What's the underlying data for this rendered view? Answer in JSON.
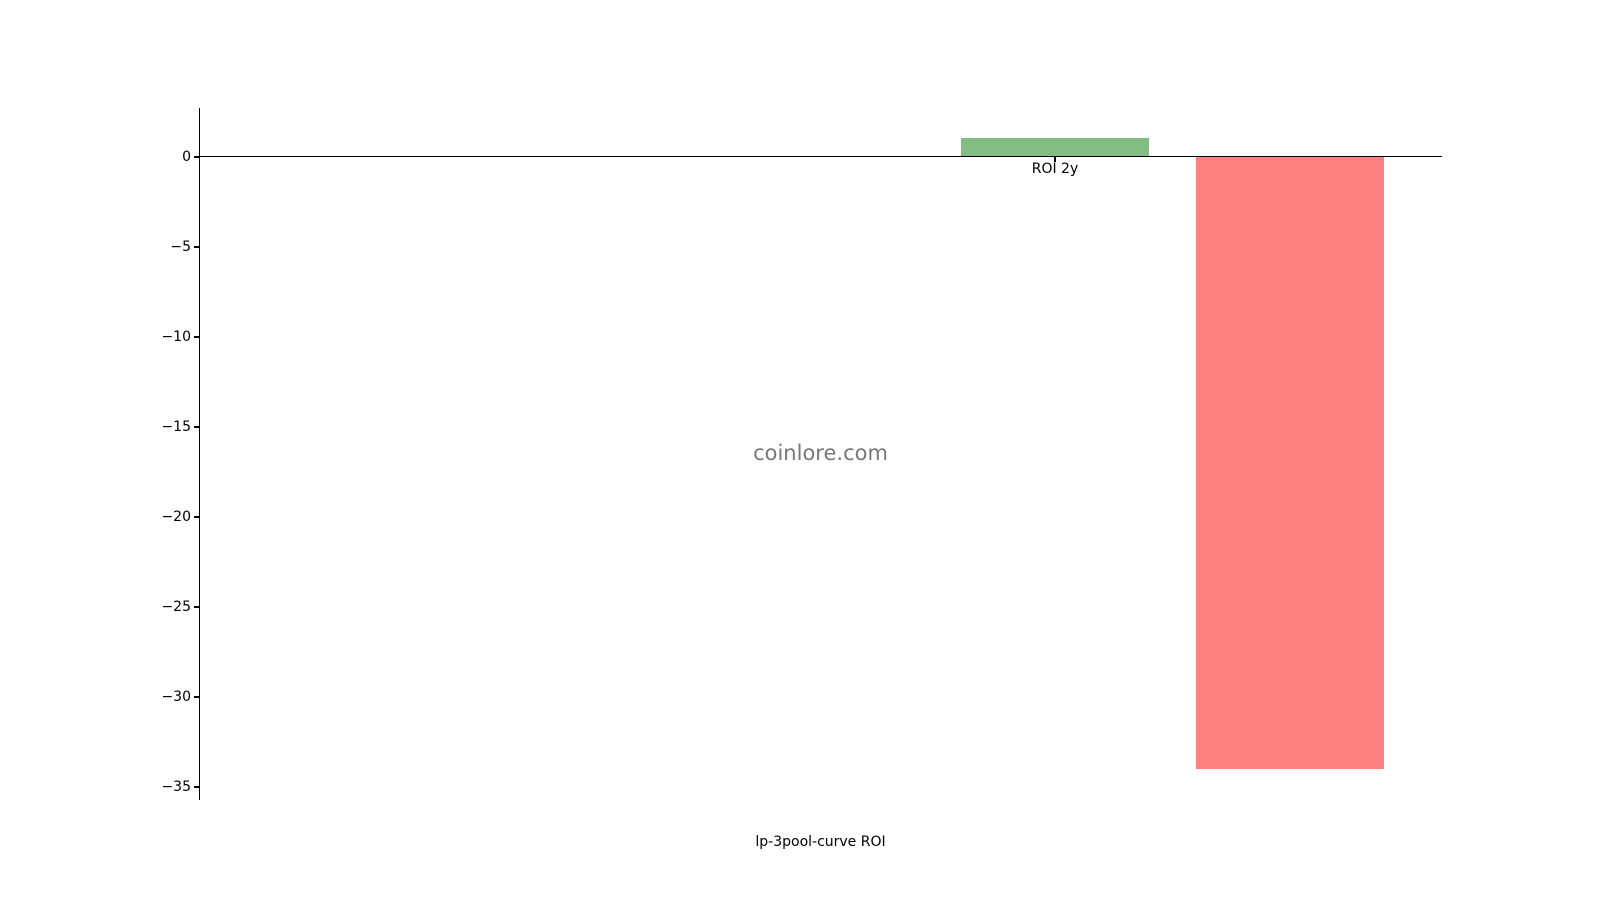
{
  "chart_data": {
    "type": "bar",
    "title": "lp-3pool-curve ROI",
    "watermark": "coinlore.com",
    "categories": [
      "ROI 2y"
    ],
    "bars": [
      {
        "label": "ROI 2y",
        "value": 1.0,
        "color": "#84bd84",
        "name": "roi-2y-positive-bar"
      },
      {
        "label": "",
        "value": -34.0,
        "color": "#fc8181",
        "name": "roi-2y-negative-bar"
      }
    ],
    "yticks": [
      {
        "label": "0",
        "value": 0
      },
      {
        "label": "−5",
        "value": -5
      },
      {
        "label": "−10",
        "value": -10
      },
      {
        "label": "−15",
        "value": -15
      },
      {
        "label": "−20",
        "value": -20
      },
      {
        "label": "−25",
        "value": -25
      },
      {
        "label": "−30",
        "value": -30
      },
      {
        "label": "−35",
        "value": -35
      },
      {
        "label": "−35",
        "value": -35
      }
    ],
    "ylim": [
      -35.75,
      2.8
    ],
    "grid": false,
    "legend": null,
    "xlabel": "",
    "ylabel": "",
    "axis_color": "#000000",
    "text_color": "#000000",
    "watermark_color": "#777777"
  }
}
